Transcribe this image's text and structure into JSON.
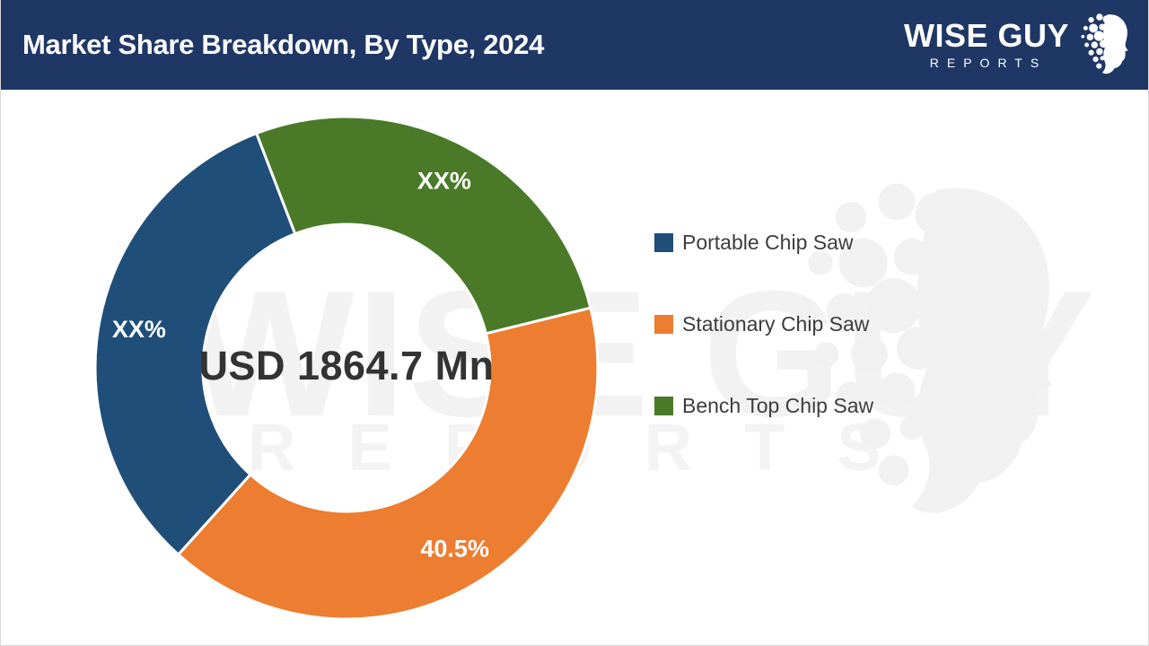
{
  "header": {
    "title": "Market Share Breakdown, By Type, 2024",
    "bg_color": "#1f3765",
    "logo": {
      "name": "WISE GUY",
      "subtitle": "REPORTS"
    }
  },
  "watermark": {
    "line1": "WISE GUY",
    "line2": "REPORTS"
  },
  "chart_data": {
    "type": "pie",
    "subtype": "donut",
    "title": "Market Share Breakdown, By Type, 2024",
    "center_label": "USD 1864.7 Mn",
    "start_angle_deg": -21,
    "direction": "counterclockwise",
    "inner_radius_ratio": 0.57,
    "legend_position": "right",
    "slices": [
      {
        "name": "Portable Chip Saw",
        "value_pct": 32.5,
        "label": "XX%",
        "color": "#1f4e79"
      },
      {
        "name": "Stationary Chip Saw",
        "value_pct": 40.5,
        "label": "40.5%",
        "color": "#ed7d31"
      },
      {
        "name": "Bench Top Chip Saw",
        "value_pct": 27.0,
        "label": "XX%",
        "color": "#4a7a28"
      }
    ]
  }
}
